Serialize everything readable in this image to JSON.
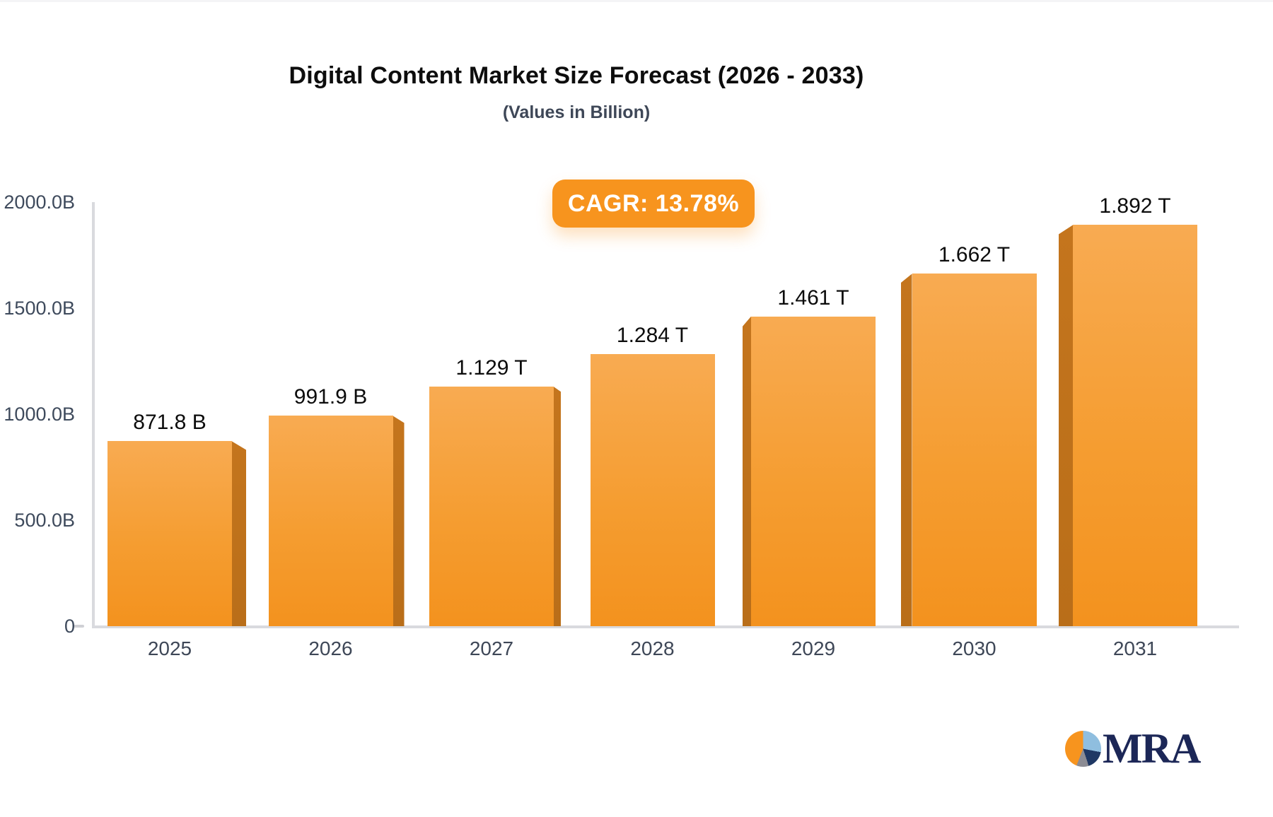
{
  "header": {
    "title": "Digital Content Market Size Forecast (2026 - 2033)",
    "subtitle": "(Values in Billion)",
    "badge_label": "CAGR: 13.78%"
  },
  "chart_data": {
    "type": "bar",
    "title": "Digital Content Market Size Forecast (2026 - 2033)",
    "subtitle": "(Values in Billion)",
    "annotation": "CAGR: 13.78%",
    "categories": [
      "2025",
      "2026",
      "2027",
      "2028",
      "2029",
      "2030",
      "2031"
    ],
    "values": [
      871.8,
      991.9,
      1129,
      1284,
      1461,
      1662,
      1892
    ],
    "value_labels": [
      "871.8 B",
      "991.9 B",
      "1.129 T",
      "1.284 T",
      "1.461 T",
      "1.662 T",
      "1.892 T"
    ],
    "xlabel": "",
    "ylabel": "",
    "ylim": [
      0,
      2000
    ],
    "ytick_values": [
      0,
      500,
      1000,
      1500,
      2000
    ],
    "ytick_labels": [
      "0",
      "500.0B",
      "1000.0B",
      "1500.0B",
      "2000.0B"
    ],
    "grid": false,
    "legend": null,
    "bar_style": "3d-perspective",
    "colors": {
      "bar_face_top": "#F8AB52",
      "bar_face_bottom": "#F3921E",
      "bar_side": "#BE701C",
      "badge_background": "#F7941E",
      "axis_line": "#D9DADE",
      "tick_text": "#3E4A5C",
      "value_text": "#0C0C0C",
      "title_text": "#0D0D0D",
      "subtitle_text": "#3E4757"
    }
  },
  "logo": {
    "text": "MRA",
    "pie_colors": {
      "light_blue": "#8FBEDF",
      "navy": "#1F3864",
      "gray": "#8C8C94",
      "orange": "#F7941E"
    }
  }
}
